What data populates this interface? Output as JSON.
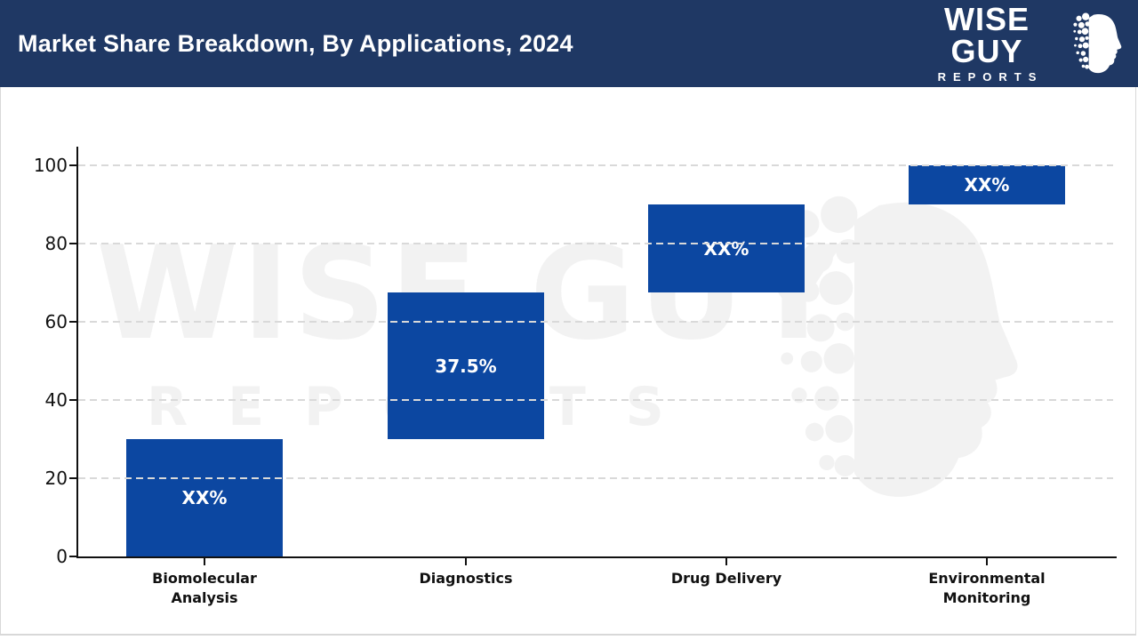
{
  "header": {
    "title": "Market Share Breakdown, By Applications, 2024",
    "logo": {
      "brand": "WISE GUY",
      "sub": "REPORTS"
    }
  },
  "watermark": {
    "brand": "WISE GUY",
    "sub": "R E P O R T S"
  },
  "chart_data": {
    "type": "bar",
    "subtype": "floating-segment (waterfall-style market share)",
    "title": "Market Share Breakdown, By Applications, 2024",
    "categories": [
      "Biomolecular Analysis",
      "Diagnostics",
      "Drug Delivery",
      "Environmental Monitoring"
    ],
    "segments": [
      {
        "category": "Biomolecular Analysis",
        "start": 0,
        "end": 30,
        "share_pct": 30,
        "label": "XX%"
      },
      {
        "category": "Diagnostics",
        "start": 30,
        "end": 67.5,
        "share_pct": 37.5,
        "label": "37.5%"
      },
      {
        "category": "Drug Delivery",
        "start": 67.5,
        "end": 90,
        "share_pct": 22.5,
        "label": "XX%"
      },
      {
        "category": "Environmental Monitoring",
        "start": 90,
        "end": 100,
        "share_pct": 10,
        "label": "XX%"
      }
    ],
    "xlabel": "",
    "ylabel": "",
    "ylim": [
      0,
      100
    ],
    "yticks": [
      0,
      20,
      40,
      60,
      80,
      100
    ],
    "grid": "horizontal dashed",
    "legend": "none"
  },
  "colors": {
    "header_bg": "#1f3864",
    "bar": "#0c47a1",
    "gridline": "#d9d9d9",
    "axis": "#111111",
    "watermark": "#f2f2f2",
    "frame_border": "#d8d8d8"
  }
}
